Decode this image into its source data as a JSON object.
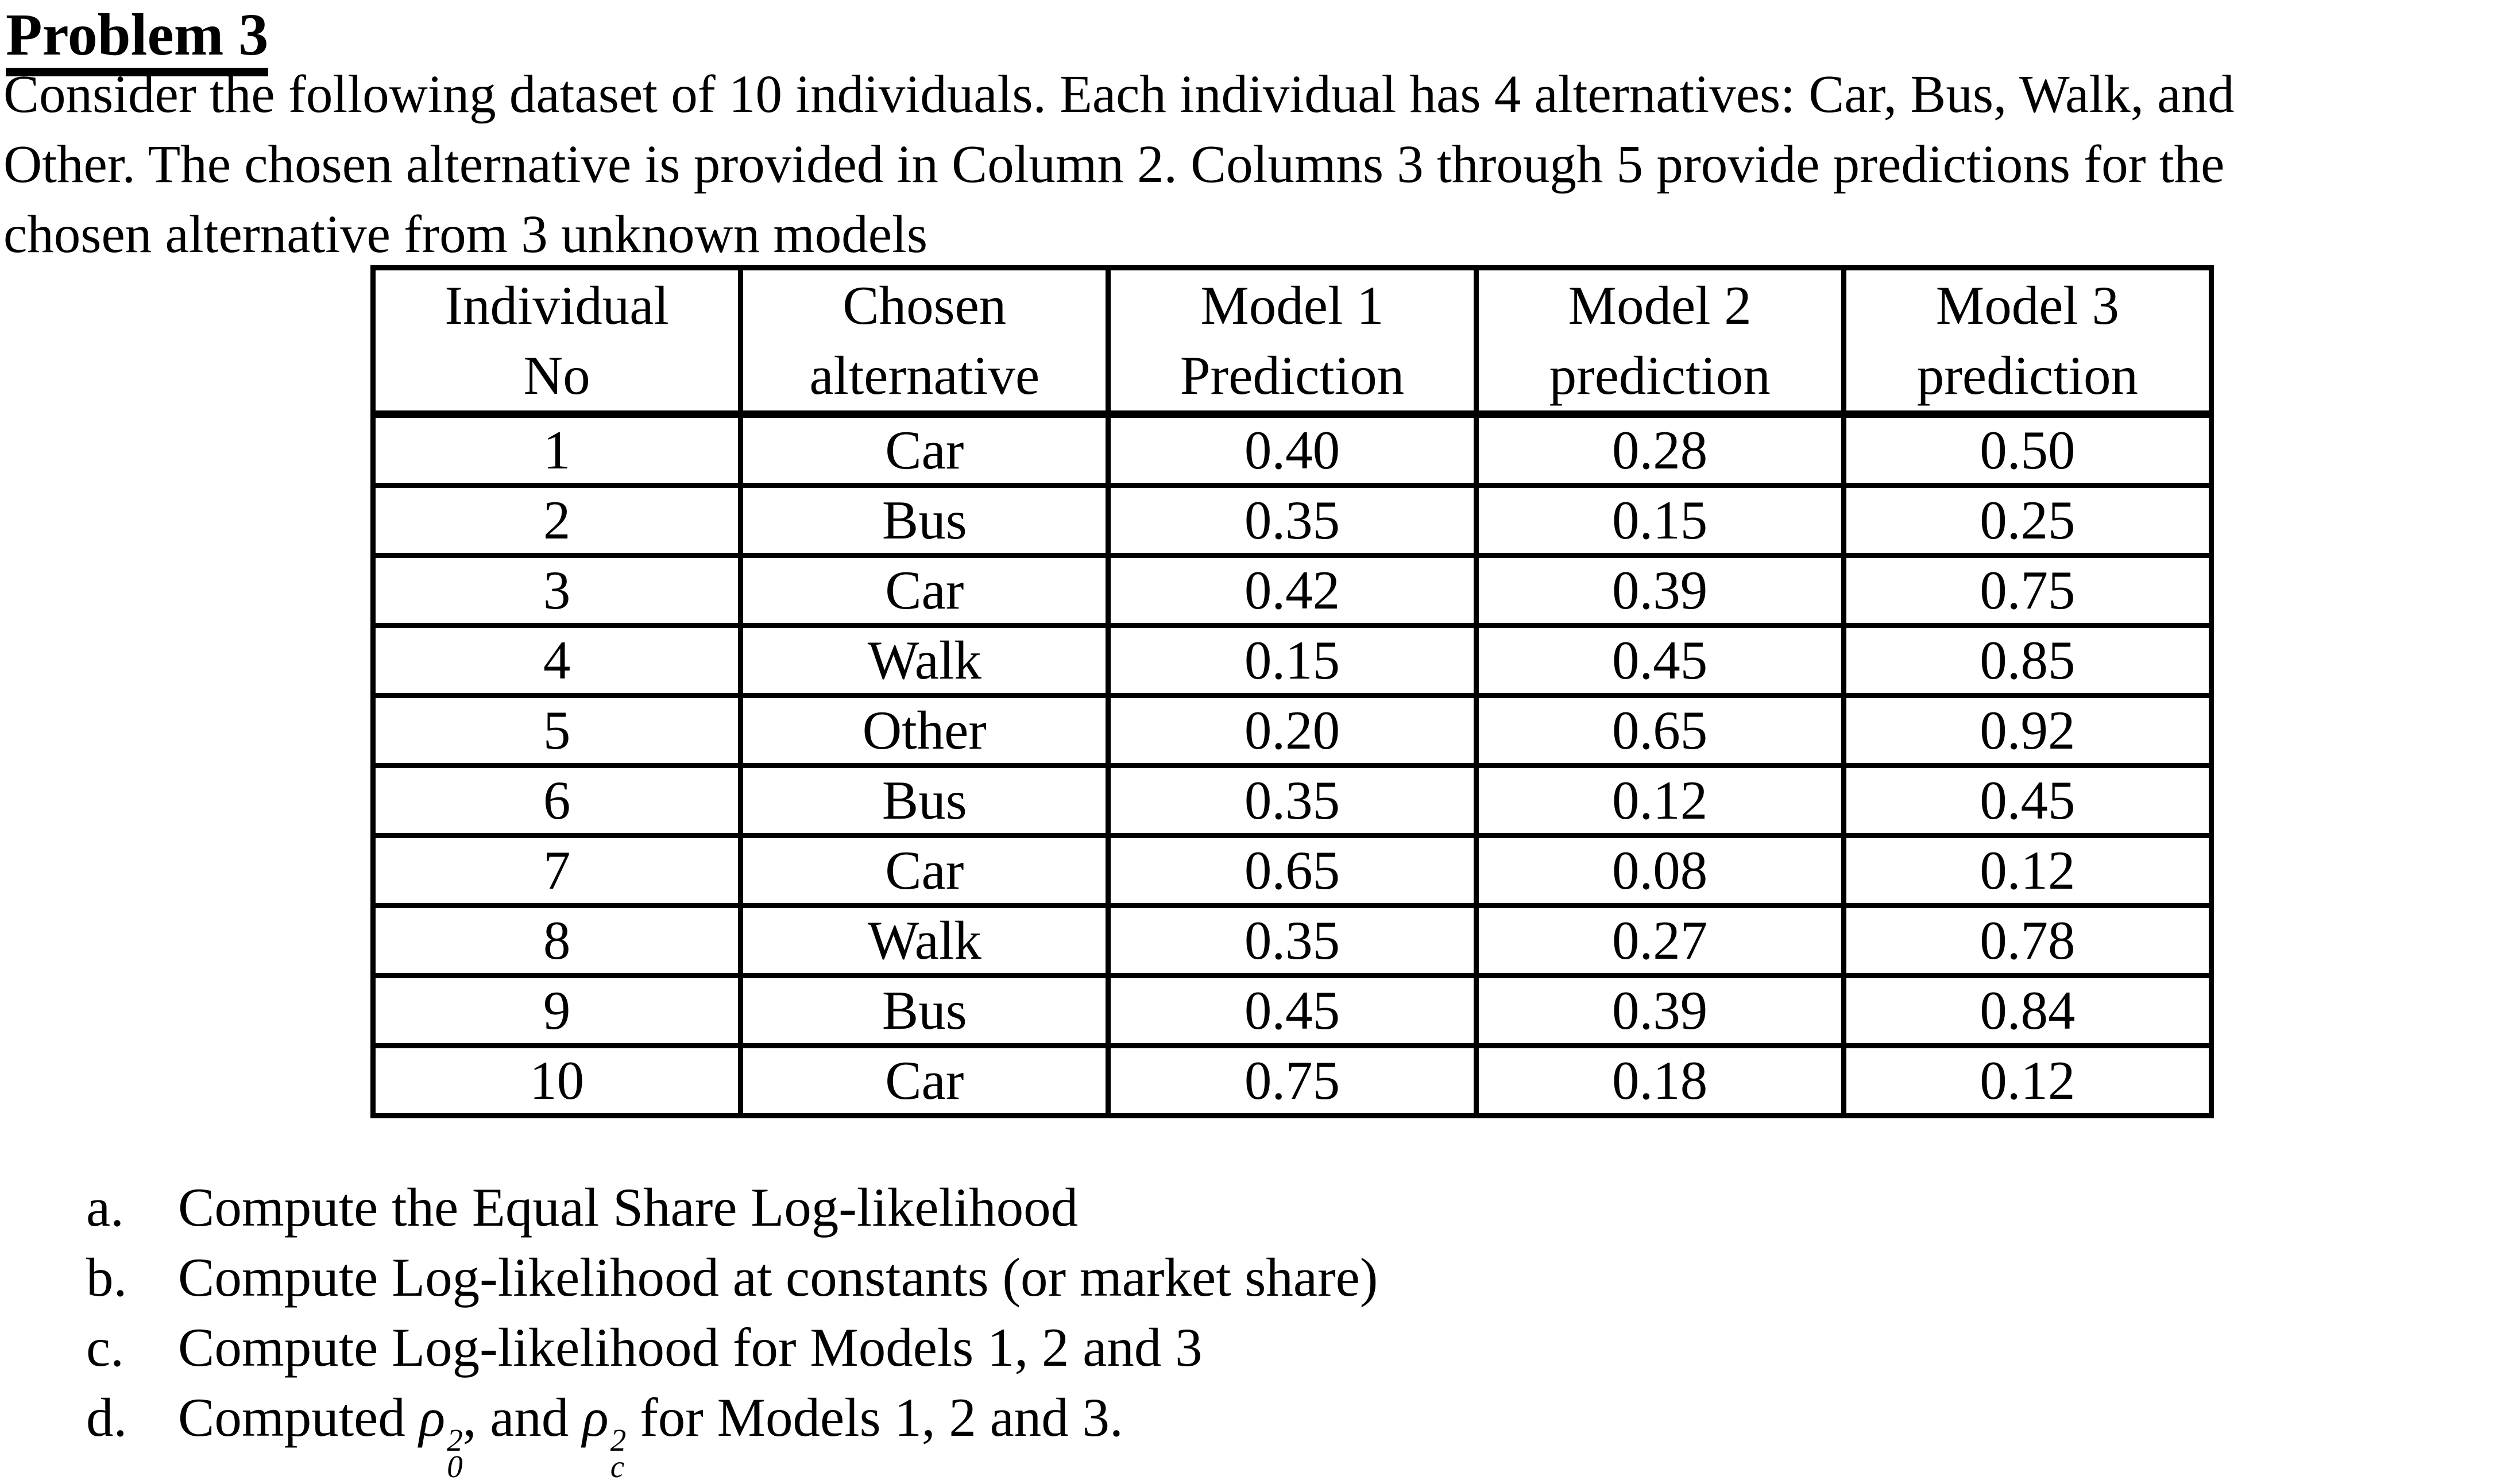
{
  "page": {
    "background_color": "#ffffff",
    "text_color": "#000000",
    "border_color": "#000000"
  },
  "title": "Problem 3",
  "intro": "Consider the following dataset of 10 individuals. Each individual has 4 alternatives: Car, Bus, Walk, and\nOther. The chosen alternative is provided in Column 2. Columns 3 through 5 provide predictions for the\nchosen alternative from 3 unknown models",
  "table": {
    "headers": [
      "Individual\nNo",
      "Chosen\nalternative",
      "Model 1\nPrediction",
      "Model 2\nprediction",
      "Model 3\nprediction"
    ],
    "rows": [
      [
        "1",
        "Car",
        "0.40",
        "0.28",
        "0.50"
      ],
      [
        "2",
        "Bus",
        "0.35",
        "0.15",
        "0.25"
      ],
      [
        "3",
        "Car",
        "0.42",
        "0.39",
        "0.75"
      ],
      [
        "4",
        "Walk",
        "0.15",
        "0.45",
        "0.85"
      ],
      [
        "5",
        "Other",
        "0.20",
        "0.65",
        "0.92"
      ],
      [
        "6",
        "Bus",
        "0.35",
        "0.12",
        "0.45"
      ],
      [
        "7",
        "Car",
        "0.65",
        "0.08",
        "0.12"
      ],
      [
        "8",
        "Walk",
        "0.35",
        "0.27",
        "0.78"
      ],
      [
        "9",
        "Bus",
        "0.45",
        "0.39",
        "0.84"
      ],
      [
        "10",
        "Car",
        "0.75",
        "0.18",
        "0.12"
      ]
    ]
  },
  "questions": {
    "a": {
      "marker": "a.",
      "text": "Compute the Equal Share Log-likelihood"
    },
    "b": {
      "marker": "b.",
      "text": "Compute Log-likelihood at constants (or market share)"
    },
    "c": {
      "marker": "c.",
      "text": "Compute Log-likelihood for Models 1, 2 and 3"
    },
    "d": {
      "marker": "d.",
      "prefix": "Computed ",
      "rho1": {
        "base": "ρ",
        "sup": "2",
        "sub": "0"
      },
      "mid": ", and ",
      "rho2": {
        "base": "ρ",
        "sup": "2",
        "sub": "c"
      },
      "suffix": " for Models 1, 2 and 3."
    }
  }
}
